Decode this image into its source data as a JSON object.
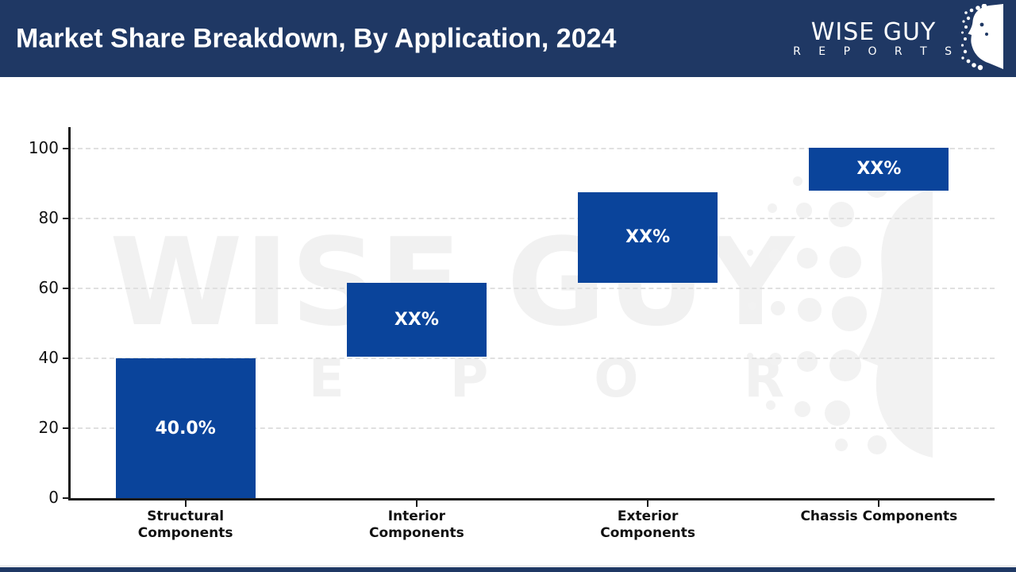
{
  "header": {
    "title": "Market Share Breakdown, By Application, 2024",
    "bg_color": "#1f3864",
    "logo": {
      "line1": "WISE GUY",
      "line2": "R E P O R T S"
    }
  },
  "watermark": {
    "line1": "WISE GUY",
    "line2": "R E P O R T S",
    "color": "#f1f1f1"
  },
  "footer": {
    "bar_color": "#1f3864"
  },
  "chart_data": {
    "type": "bar",
    "subtype": "waterfall",
    "title": "Market Share Breakdown, By Application, 2024",
    "categories": [
      "Structural\nComponents",
      "Interior\nComponents",
      "Exterior\nComponents",
      "Chassis Components"
    ],
    "segments": [
      {
        "category": "Structural Components",
        "start": 0,
        "end": 40,
        "label": "40.0%"
      },
      {
        "category": "Interior Components",
        "start": 40.5,
        "end": 61.5,
        "label": "XX%"
      },
      {
        "category": "Exterior Components",
        "start": 61.6,
        "end": 87.5,
        "label": "XX%"
      },
      {
        "category": "Chassis Components",
        "start": 88,
        "end": 100.2,
        "label": "XX%"
      }
    ],
    "yticks": [
      0,
      20,
      40,
      60,
      80,
      100
    ],
    "ylim": [
      0,
      105
    ],
    "xlabel": "",
    "ylabel": "",
    "grid": "horizontal-dashed",
    "legend": "none",
    "bar_color": "#0a449b",
    "grid_color": "#e0e0e0",
    "axis_color": "#1a1a1a"
  }
}
